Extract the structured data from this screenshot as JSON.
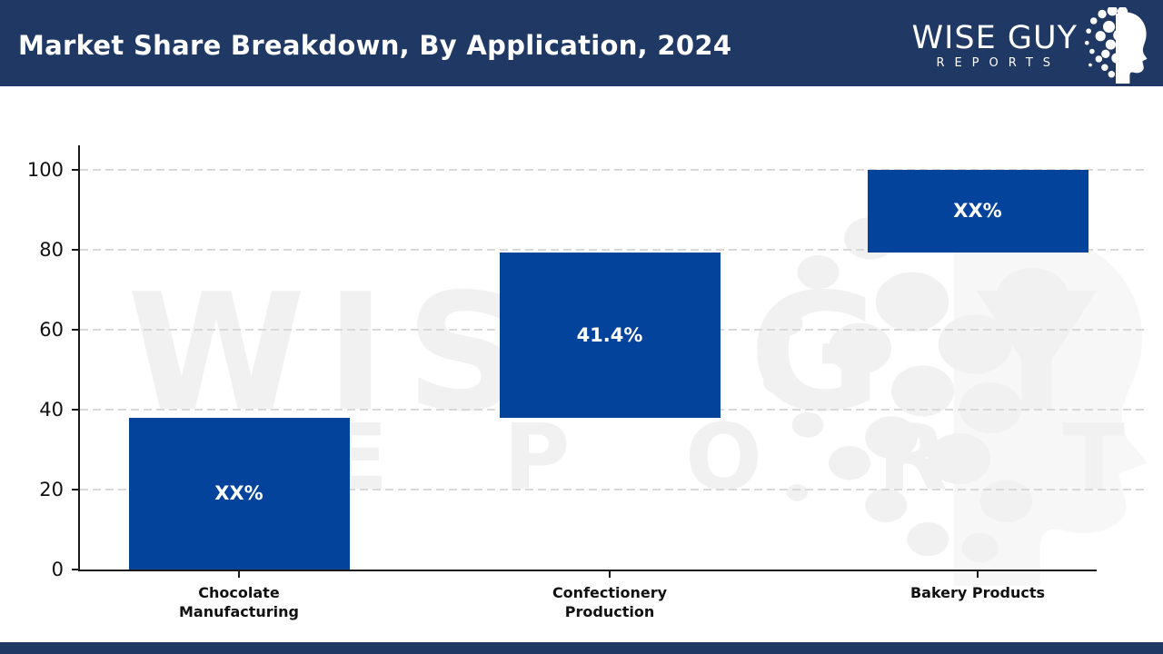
{
  "header": {
    "title": "Market Share Breakdown, By Application, 2024",
    "logo_line1": "WISE GUY",
    "logo_line2": "REPORTS"
  },
  "watermark": {
    "line1": "WISE G Y",
    "line2": "R E P O R T S"
  },
  "chart_data": {
    "type": "bar",
    "subtype": "waterfall",
    "title": "Market Share Breakdown, By Application, 2024",
    "categories": [
      "Chocolate Manufacturing",
      "Confectionery Production",
      "Bakery Products"
    ],
    "category_lines": [
      [
        "Chocolate",
        "Manufacturing"
      ],
      [
        "Confectionery",
        "Production"
      ],
      [
        "Bakery Products"
      ]
    ],
    "segments": [
      {
        "category": "Chocolate Manufacturing",
        "start": 0,
        "end": 38,
        "label": "XX%"
      },
      {
        "category": "Confectionery Production",
        "start": 38,
        "end": 79.4,
        "label": "41.4%"
      },
      {
        "category": "Bakery Products",
        "start": 79.4,
        "end": 100,
        "label": "XX%"
      }
    ],
    "ylim": [
      0,
      100
    ],
    "yticks": [
      0,
      20,
      40,
      60,
      80,
      100
    ],
    "grid": "horizontal-dashed",
    "legend": "none",
    "colors": {
      "bar": "#04439c",
      "bar_label": "#ffffff",
      "axis": "#1a1a1a",
      "grid": "#d9d9d9",
      "header_bg": "#203864",
      "watermark": "#f1f1f1"
    }
  }
}
